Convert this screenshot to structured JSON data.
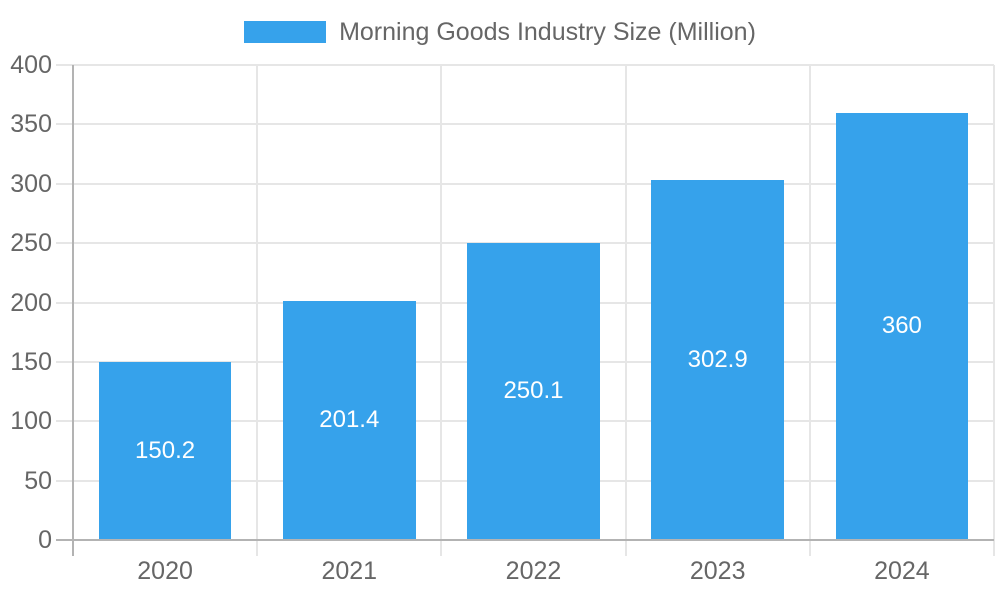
{
  "chart_data": {
    "type": "bar",
    "title": "Morning Goods Industry Size (Million)",
    "legend_label": "Morning Goods Industry Size (Million)",
    "legend_position": "top",
    "categories": [
      "2020",
      "2021",
      "2022",
      "2023",
      "2024"
    ],
    "series": [
      {
        "name": "Morning Goods Industry Size (Million)",
        "values": [
          150.2,
          201.4,
          250.1,
          302.9,
          360
        ]
      }
    ],
    "bar_value_labels": [
      "150.2",
      "201.4",
      "250.1",
      "302.9",
      "360"
    ],
    "xlabel": "",
    "ylabel": "",
    "ylim": [
      0,
      400
    ],
    "ytick_step": 50,
    "yticks": [
      0,
      50,
      100,
      150,
      200,
      250,
      300,
      350,
      400
    ],
    "grid": true,
    "colors": {
      "bar": "#36A2EB",
      "bar_label_text": "#ffffff",
      "tick_text": "#666666",
      "legend_text": "#666666",
      "gridline": "#e6e6e6",
      "axis_line": "#b3b3b3",
      "background": "#ffffff"
    }
  }
}
